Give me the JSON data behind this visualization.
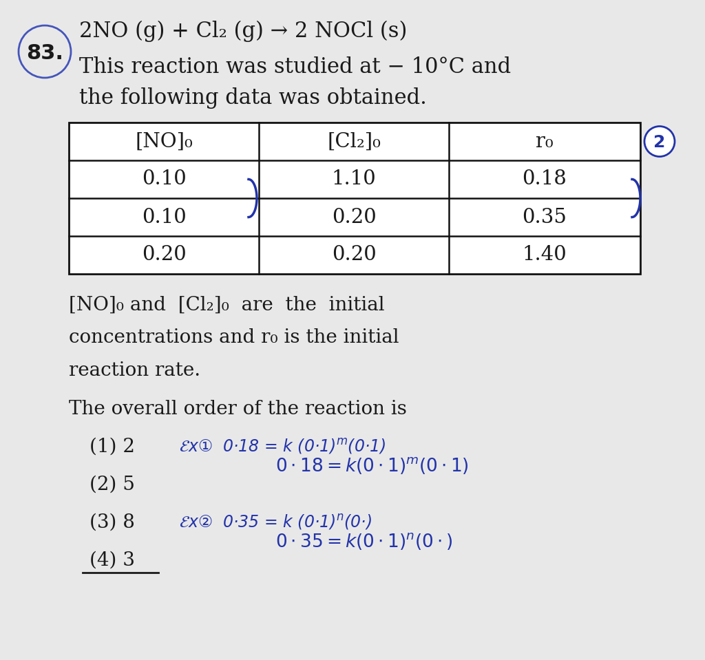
{
  "bg_color": "#e8e8e8",
  "text_color": "#1a1a1a",
  "table_line_color": "#111111",
  "blue_ink": "#2233aa",
  "problem_number": "83.",
  "equation": "2NO (g) + Cl₂ (g) → 2 NOCl (s)",
  "desc1": "This reaction was studied at − 10°C and",
  "desc2": "the following data was obtained.",
  "headers": [
    "[NO]₀",
    "[Cl₂]₀",
    "r₀"
  ],
  "rows": [
    [
      "0.10",
      "1.10",
      "0.18"
    ],
    [
      "0.10",
      "0.20",
      "0.35"
    ],
    [
      "0.20",
      "0.20",
      "1.40"
    ]
  ],
  "note1": "[NO]₀ and  [Cl₂]₀  are  the  initial",
  "note2": "concentrations and r₀ is the initial",
  "note3": "reaction rate.",
  "question": "The overall order of the reaction is",
  "options": [
    "(1) 2",
    "(2) 5",
    "(3) 8",
    "(4) 3"
  ]
}
